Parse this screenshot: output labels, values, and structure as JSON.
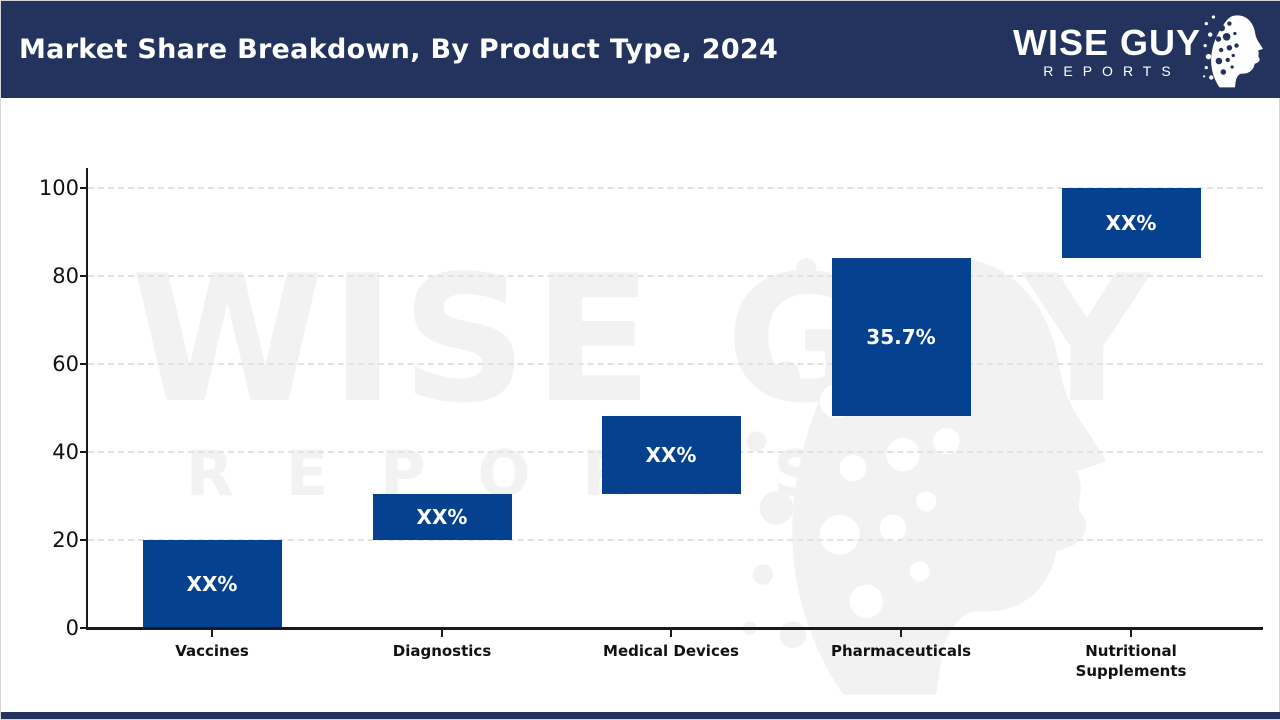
{
  "header": {
    "title": "Market Share Breakdown, By Product Type, 2024",
    "logo": {
      "line1": "WISE GUY",
      "line2": "REPORTS"
    }
  },
  "watermark": {
    "line1": "WISE GUY",
    "line2": "REPORTS"
  },
  "colors": {
    "header_bg": "#24335e",
    "footer_bg": "#24335e",
    "bar": "#05418f",
    "bar_label": "#ffffff",
    "gridline": "#e2e2e2",
    "axis": "#1a1a1a",
    "watermark": "#f2f2f2"
  },
  "chart_data": {
    "type": "bar",
    "subtype": "waterfall-floating-bars",
    "title": "Market Share Breakdown, By Product Type, 2024",
    "categories": [
      "Vaccines",
      "Diagnostics",
      "Medical Devices",
      "Pharmaceuticals",
      "Nutritional Supplements"
    ],
    "segments": [
      {
        "category": "Vaccines",
        "start": 0,
        "end": 20,
        "value": 20,
        "label": "XX%"
      },
      {
        "category": "Diagnostics",
        "start": 20,
        "end": 30.5,
        "value": 10.5,
        "label": "XX%"
      },
      {
        "category": "Medical Devices",
        "start": 30.5,
        "end": 48.2,
        "value": 17.7,
        "label": "XX%"
      },
      {
        "category": "Pharmaceuticals",
        "start": 48.2,
        "end": 83.9,
        "value": 35.7,
        "label": "35.7%"
      },
      {
        "category": "Nutritional Supplements",
        "start": 83.9,
        "end": 100,
        "value": 16.1,
        "label": "XX%"
      }
    ],
    "xlabel": "",
    "ylabel": "",
    "ylim": [
      0,
      100
    ],
    "yticks": [
      0,
      20,
      40,
      60,
      80,
      100
    ],
    "grid": "horizontal-dashed",
    "legend": "none",
    "bar_label_note": "only Pharmaceuticals shows a numeric value; others masked as XX%"
  }
}
